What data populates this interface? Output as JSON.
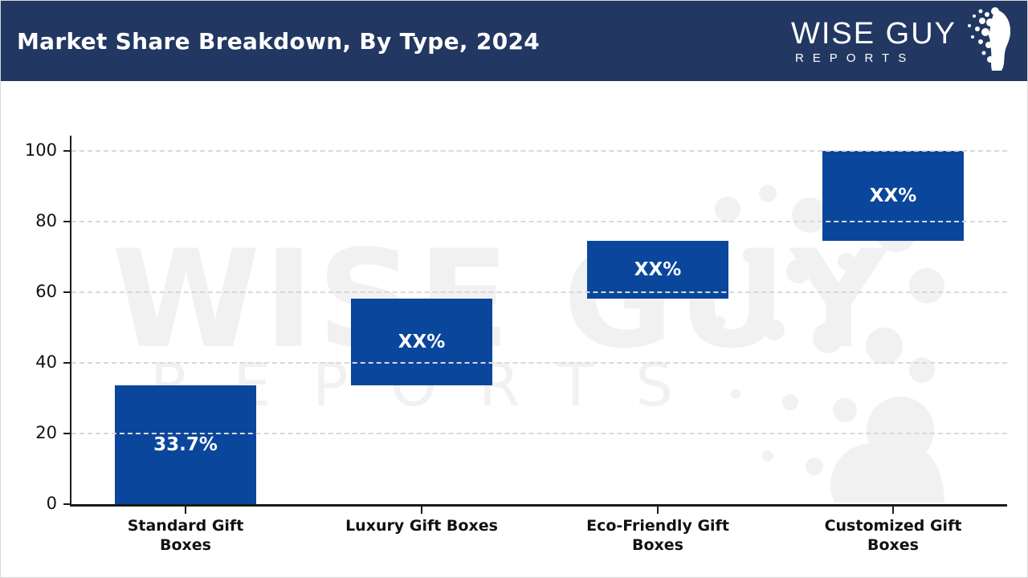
{
  "colors": {
    "header_bg": "#223761",
    "bar": "#0a469c",
    "grid": "#d9d9d9",
    "axis": "#1a1a1a",
    "watermark": "#f1f1f1",
    "title_text": "#ffffff",
    "value_label_text": "#ffffff"
  },
  "header": {
    "title": "Market Share Breakdown, By Type, 2024",
    "logo": {
      "line1": "WISE GUY",
      "line2": "REPORTS"
    }
  },
  "watermark": {
    "line1": "WISE GUY",
    "line2": "REPORTS"
  },
  "chart_data": {
    "type": "bar",
    "subtype": "waterfall",
    "title": "Market Share Breakdown, By Type, 2024",
    "xlabel": "",
    "ylabel": "",
    "ylim": [
      0,
      104
    ],
    "yticks": [
      0,
      20,
      40,
      60,
      80,
      100
    ],
    "grid": "horizontal dashed, drawn over bars",
    "legend": "none",
    "bar_color": "#0a469c",
    "bars": [
      {
        "category": "Standard Gift Boxes",
        "label_lines": [
          "Standard Gift",
          "Boxes"
        ],
        "base": 0,
        "top": 33.7,
        "value_label": "33.7%"
      },
      {
        "category": "Luxury Gift Boxes",
        "label_lines": [
          "Luxury Gift Boxes"
        ],
        "base": 33.7,
        "top": 58.2,
        "value_label": "XX%"
      },
      {
        "category": "Eco-Friendly Gift Boxes",
        "label_lines": [
          "Eco-Friendly Gift",
          "Boxes"
        ],
        "base": 58.2,
        "top": 74.6,
        "value_label": "XX%"
      },
      {
        "category": "Customized Gift Boxes",
        "label_lines": [
          "Customized Gift",
          "Boxes"
        ],
        "base": 74.6,
        "top": 100,
        "value_label": "XX%"
      }
    ]
  }
}
